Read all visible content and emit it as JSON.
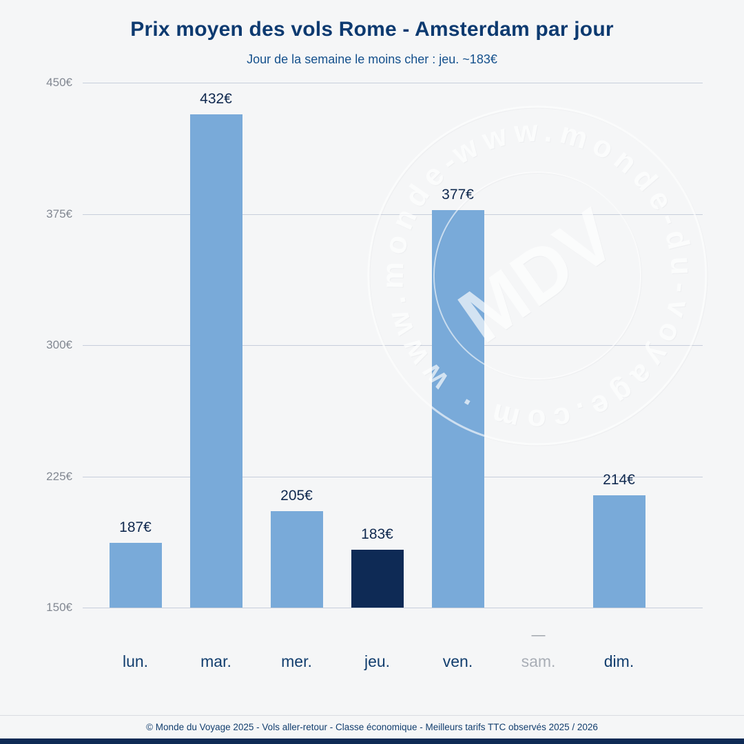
{
  "title": "Prix moyen des vols Rome - Amsterdam par jour",
  "subtitle": "Jour de la semaine le moins cher : jeu. ~183€",
  "watermark": {
    "circle_text": "www.monde-du-voyage.com · www.monde-du-voyage.com ·",
    "center_text": "MDV"
  },
  "footer": {
    "text": "© Monde du Voyage 2025 - Vols aller-retour - Classe économique - Meilleurs tarifs TTC observés 2025 / 2026"
  },
  "colors": {
    "background": "#f5f6f7",
    "bar": "#79aad9",
    "bar_min": "#0e2a55",
    "title": "#0d3a70",
    "grid": "#c7cedb",
    "ytick": "#828892",
    "xlabel": "#123e6e",
    "xlabel_muted": "#a9aeb6",
    "footer_bar": "#0e2a55"
  },
  "chart_data": {
    "type": "bar",
    "title": "Prix moyen des vols Rome - Amsterdam par jour",
    "subtitle": "Jour de la semaine le moins cher : jeu. ~183€",
    "categories": [
      "lun.",
      "mar.",
      "mer.",
      "jeu.",
      "ven.",
      "sam.",
      "dim."
    ],
    "values": [
      187,
      432,
      205,
      183,
      377,
      null,
      214
    ],
    "labels": [
      "187€",
      "432€",
      "205€",
      "183€",
      "377€",
      "—",
      "214€"
    ],
    "min_index": 3,
    "ylim": [
      150,
      450
    ],
    "yticks": [
      450,
      375,
      300,
      225,
      150
    ],
    "ytick_labels": [
      "450€",
      "375€",
      "300€",
      "225€",
      "150€"
    ],
    "grid": true,
    "legend": "none",
    "no_data_category": "sam.",
    "currency": "EUR"
  }
}
